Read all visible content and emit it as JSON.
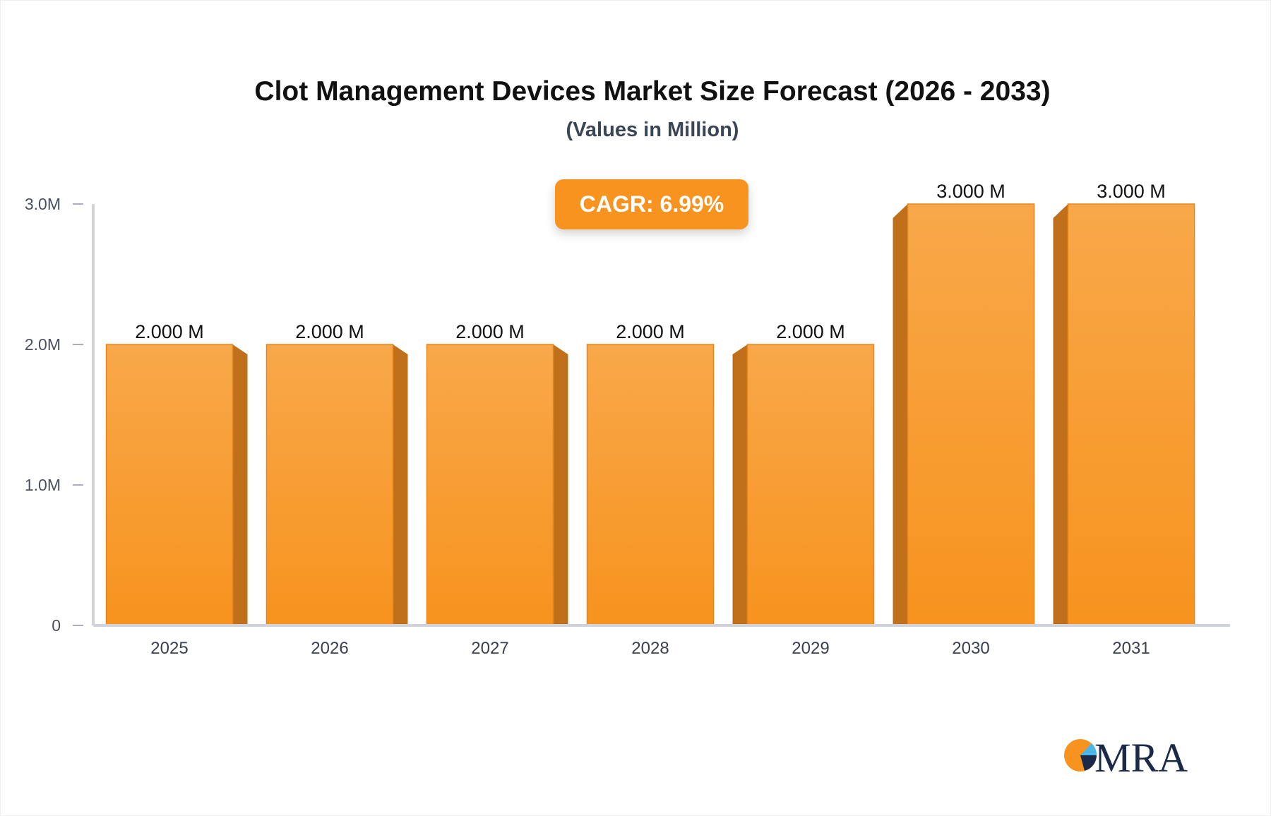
{
  "chart_data": {
    "type": "bar",
    "title": "Clot Management Devices Market Size Forecast (2026 - 2033)",
    "subtitle": "(Values in Million)",
    "categories": [
      "2025",
      "2026",
      "2027",
      "2028",
      "2029",
      "2030",
      "2031"
    ],
    "values": [
      2.0,
      2.0,
      2.0,
      2.0,
      2.0,
      3.0,
      3.0
    ],
    "data_labels": [
      "2.000 M",
      "2.000 M",
      "2.000 M",
      "2.000 M",
      "2.000 M",
      "3.000 M",
      "3.000 M"
    ],
    "yticks": [
      0,
      1,
      2,
      3
    ],
    "ytick_labels": [
      "0",
      "1.0M",
      "2.0M",
      "3.0M"
    ],
    "ylim": [
      0,
      3
    ],
    "xlabel": "",
    "ylabel": "",
    "grid": false,
    "bar_color": "#f7931e",
    "annotation": "CAGR: 6.99%"
  },
  "logo_text": "MRA"
}
